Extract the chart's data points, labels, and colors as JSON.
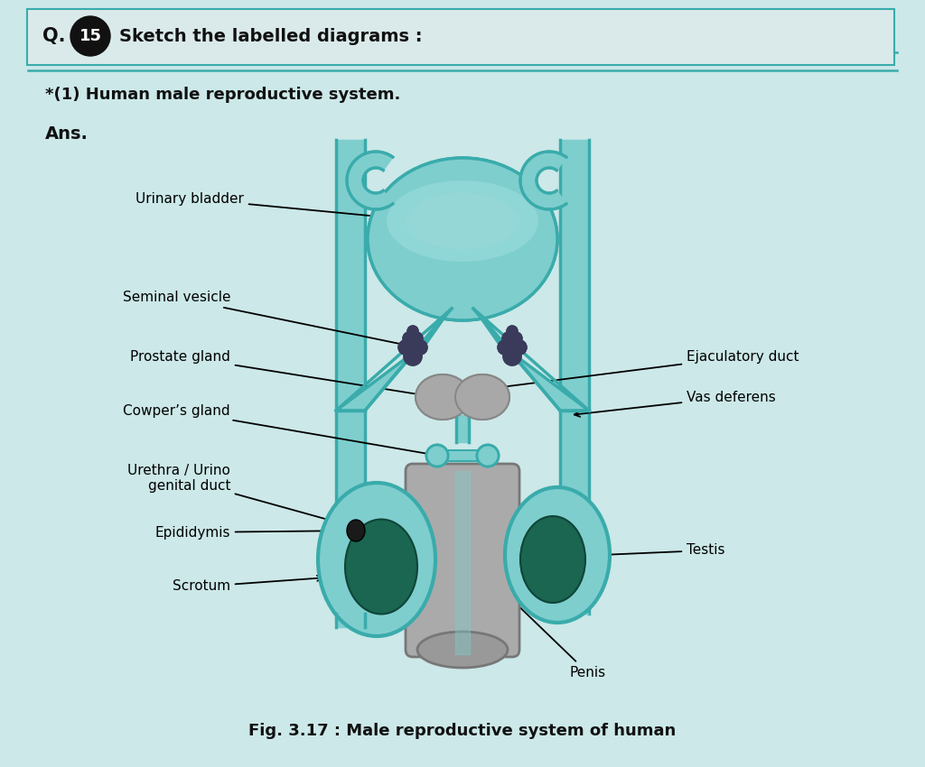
{
  "title_text": "Sketch the labelled diagrams :",
  "subtitle": "*(1) Human male reproductive system.",
  "ans_label": "Ans.",
  "fig_caption": "Fig. 3.17 : Male reproductive system of human",
  "bg_color": "#cce8e8",
  "header_bg": "#ddf0f0",
  "teal_fill": "#7ecece",
  "teal_stroke": "#3aabab",
  "teal_dark": "#2a8888",
  "bladder_top": "#6ecece",
  "bladder_bottom": "#a8dcdc",
  "gray_fill": "#b8b8b8",
  "gray_dark": "#888888",
  "dark_teal_testis": "#1a6650",
  "dark_gland": "#3a3a5a",
  "labels": {
    "urinary_bladder": "Urinary bladder",
    "seminal_vesicle": "Seminal vesicle",
    "prostate_gland": "Prostate gland",
    "cowpers_gland": "Cowper’s gland",
    "urethra": "Urethra / Urino\ngenital duct",
    "epididymis": "Epididymis",
    "scrotum": "Scrotum",
    "ejaculatory_duct": "Ejaculatory duct",
    "vas_deferens": "Vas deferens",
    "testis": "Testis",
    "penis": "Penis"
  }
}
